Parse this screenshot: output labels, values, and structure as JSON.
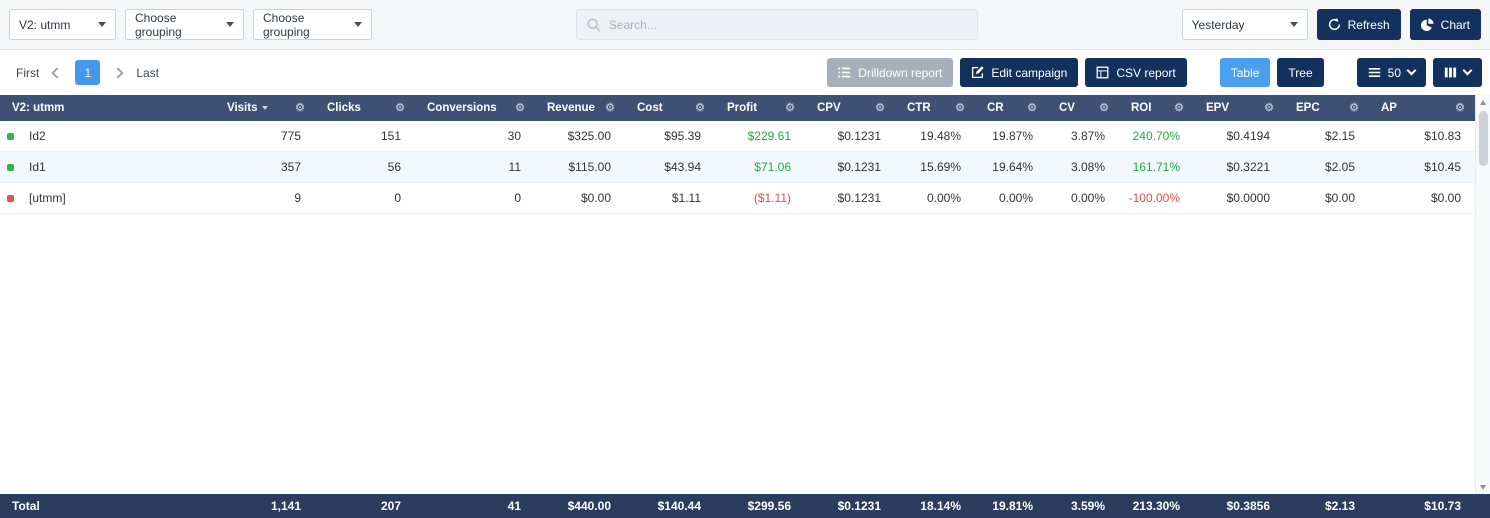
{
  "toolbar": {
    "campaign_dropdown": {
      "value": "V2: utmm"
    },
    "grouping1": {
      "value": "Choose grouping"
    },
    "grouping2": {
      "value": "Choose grouping"
    },
    "search": {
      "placeholder": "Search..."
    },
    "date_range": {
      "value": "Yesterday"
    },
    "refresh_label": "Refresh",
    "chart_label": "Chart"
  },
  "pagination": {
    "first_label": "First",
    "current_page": "1",
    "last_label": "Last"
  },
  "actions": {
    "drilldown_label": "Drilldown report",
    "edit_campaign_label": "Edit campaign",
    "csv_label": "CSV report",
    "table_label": "Table",
    "tree_label": "Tree",
    "page_size": "50"
  },
  "table": {
    "columns": [
      {
        "key": "name",
        "label": "V2: utmm",
        "gear": false
      },
      {
        "key": "visits",
        "label": "Visits",
        "sort": "desc",
        "gear": true
      },
      {
        "key": "clicks",
        "label": "Clicks",
        "gear": true
      },
      {
        "key": "conversions",
        "label": "Conversions",
        "gear": true
      },
      {
        "key": "revenue",
        "label": "Revenue",
        "gear": true
      },
      {
        "key": "cost",
        "label": "Cost",
        "gear": true
      },
      {
        "key": "profit",
        "label": "Profit",
        "gear": true
      },
      {
        "key": "cpv",
        "label": "CPV",
        "gear": true
      },
      {
        "key": "ctr",
        "label": "CTR",
        "gear": true
      },
      {
        "key": "cr",
        "label": "CR",
        "gear": true
      },
      {
        "key": "cv",
        "label": "CV",
        "gear": true
      },
      {
        "key": "roi",
        "label": "ROI",
        "gear": true
      },
      {
        "key": "epv",
        "label": "EPV",
        "gear": true
      },
      {
        "key": "epc",
        "label": "EPC",
        "gear": true
      },
      {
        "key": "ap",
        "label": "AP",
        "gear": true
      }
    ],
    "rows": [
      {
        "status": "green",
        "name": "Id2",
        "visits": "775",
        "clicks": "151",
        "conversions": "30",
        "revenue": "$325.00",
        "cost": "$95.39",
        "profit": "$229.61",
        "cpv": "$0.1231",
        "ctr": "19.48%",
        "cr": "19.87%",
        "cv": "3.87%",
        "roi": "240.70%",
        "epv": "$0.4194",
        "epc": "$2.15",
        "ap": "$10.83"
      },
      {
        "status": "green",
        "name": "Id1",
        "visits": "357",
        "clicks": "56",
        "conversions": "11",
        "revenue": "$115.00",
        "cost": "$43.94",
        "profit": "$71.06",
        "cpv": "$0.1231",
        "ctr": "15.69%",
        "cr": "19.64%",
        "cv": "3.08%",
        "roi": "161.71%",
        "epv": "$0.3221",
        "epc": "$2.05",
        "ap": "$10.45"
      },
      {
        "status": "red",
        "name": "[utmm]",
        "visits": "9",
        "clicks": "0",
        "conversions": "0",
        "revenue": "$0.00",
        "cost": "$1.11",
        "profit": "($1.11)",
        "cpv": "$0.1231",
        "ctr": "0.00%",
        "cr": "0.00%",
        "cv": "0.00%",
        "roi": "-100.00%",
        "epv": "$0.0000",
        "epc": "$0.00",
        "ap": "$0.00"
      }
    ],
    "total": {
      "label": "Total",
      "visits": "1,141",
      "clicks": "207",
      "conversions": "41",
      "revenue": "$440.00",
      "cost": "$140.44",
      "profit": "$299.56",
      "cpv": "$0.1231",
      "ctr": "18.14%",
      "cr": "19.81%",
      "cv": "3.59%",
      "roi": "213.30%",
      "epv": "$0.3856",
      "epc": "$2.13",
      "ap": "$10.73"
    }
  },
  "colors": {
    "navy_button": "#14305c",
    "header_bg": "#3d5174",
    "total_bg": "#2b3d5f",
    "active_blue": "#4aa0ee",
    "positive": "#28a745",
    "negative": "#e04f4f",
    "total_positive": "#35e06a",
    "row_alt_bg": "#f3f8fd",
    "status_green": "#33b34a",
    "status_red": "#e0524e"
  }
}
